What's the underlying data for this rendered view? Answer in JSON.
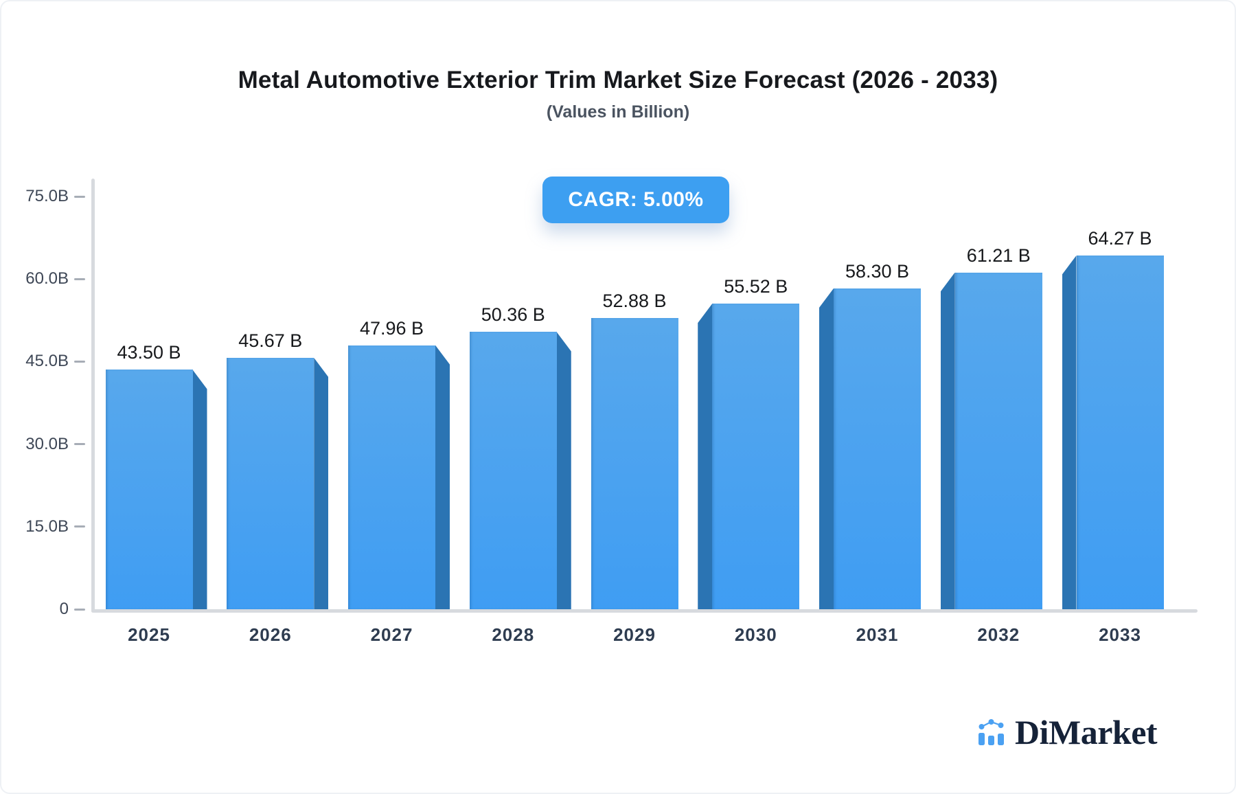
{
  "title": "Metal Automotive Exterior Trim Market Size Forecast (2026 - 2033)",
  "subtitle": "(Values in Billion)",
  "badge": {
    "label": "CAGR: 5.00%"
  },
  "brand": {
    "name": "DiMarket",
    "icon": "mini-bar-chart-icon"
  },
  "chart_data": {
    "type": "bar",
    "title": "Metal Automotive Exterior Trim Market Size Forecast (2026 - 2033)",
    "subtitle": "(Values in Billion)",
    "annotation": "CAGR: 5.00%",
    "categories": [
      "2025",
      "2026",
      "2027",
      "2028",
      "2029",
      "2030",
      "2031",
      "2032",
      "2033"
    ],
    "values": [
      43.5,
      45.67,
      47.96,
      50.36,
      52.88,
      55.52,
      58.3,
      61.21,
      64.27
    ],
    "value_labels": [
      "43.50 B",
      "45.67 B",
      "47.96 B",
      "50.36 B",
      "52.88 B",
      "55.52 B",
      "58.30 B",
      "61.21 B",
      "64.27 B"
    ],
    "xlabel": "",
    "ylabel": "",
    "ylim": [
      0,
      75
    ],
    "y_ticks": [
      {
        "value": 75,
        "label": "75.0B"
      },
      {
        "value": 60,
        "label": "60.0B"
      },
      {
        "value": 45,
        "label": "45.0B"
      },
      {
        "value": 30,
        "label": "30.0B"
      },
      {
        "value": 15,
        "label": "15.0B"
      },
      {
        "value": 0,
        "label": "0"
      }
    ],
    "grid": false,
    "legend": null,
    "bar_style": "3d-extruded, side panel faces outward from center bar"
  },
  "colors": {
    "badge_bg": "#3d9ff1",
    "badge_text": "#ffffff",
    "axis_line": "#d7dade",
    "tick": "#a7adb6",
    "title_text": "#17191d",
    "subtitle_text": "#4a5360",
    "y_label_text": "#3e4756",
    "x_label_text": "#2e3c50",
    "value_label_text": "#17191c",
    "bar_face_top": "#58a8ec",
    "bar_face_bottom": "#3f9df3",
    "bar_side": "#2b74b3",
    "brand_blue": "#4ba1f2",
    "brand_navy": "#152238"
  }
}
